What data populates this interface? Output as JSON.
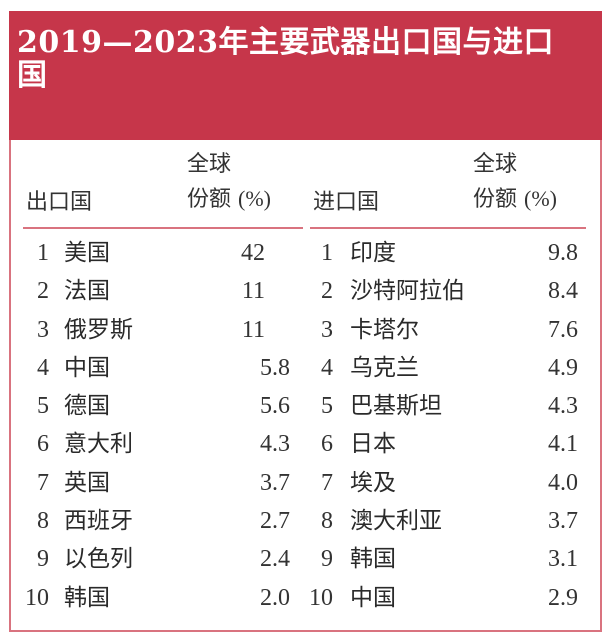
{
  "title": "2019—2023年主要武器出口国与进口国",
  "colors": {
    "banner": "#c6364a",
    "border": "#d9737f",
    "text": "#333333",
    "title_text": "#ffffff"
  },
  "exporters": {
    "country_header": "出口国",
    "share_header_line1": "全球",
    "share_header_line2": "份额",
    "share_unit": "(%)",
    "rows": [
      {
        "rank": "1",
        "country": "美国",
        "share": "42"
      },
      {
        "rank": "2",
        "country": "法国",
        "share": "11"
      },
      {
        "rank": "3",
        "country": "俄罗斯",
        "share": "11"
      },
      {
        "rank": "4",
        "country": "中国",
        "share": "5.8"
      },
      {
        "rank": "5",
        "country": "德国",
        "share": "5.6"
      },
      {
        "rank": "6",
        "country": "意大利",
        "share": "4.3"
      },
      {
        "rank": "7",
        "country": "英国",
        "share": "3.7"
      },
      {
        "rank": "8",
        "country": "西班牙",
        "share": "2.7"
      },
      {
        "rank": "9",
        "country": "以色列",
        "share": "2.4"
      },
      {
        "rank": "10",
        "country": "韩国",
        "share": "2.0"
      }
    ]
  },
  "importers": {
    "country_header": "进口国",
    "share_header_line1": "全球",
    "share_header_line2": "份额",
    "share_unit": "(%)",
    "rows": [
      {
        "rank": "1",
        "country": "印度",
        "share": "9.8"
      },
      {
        "rank": "2",
        "country": "沙特阿拉伯",
        "share": "8.4"
      },
      {
        "rank": "3",
        "country": "卡塔尔",
        "share": "7.6"
      },
      {
        "rank": "4",
        "country": "乌克兰",
        "share": "4.9"
      },
      {
        "rank": "5",
        "country": "巴基斯坦",
        "share": "4.3"
      },
      {
        "rank": "6",
        "country": "日本",
        "share": "4.1"
      },
      {
        "rank": "7",
        "country": "埃及",
        "share": "4.0"
      },
      {
        "rank": "8",
        "country": "澳大利亚",
        "share": "3.7"
      },
      {
        "rank": "9",
        "country": "韩国",
        "share": "3.1"
      },
      {
        "rank": "10",
        "country": "中国",
        "share": "2.9"
      }
    ]
  }
}
